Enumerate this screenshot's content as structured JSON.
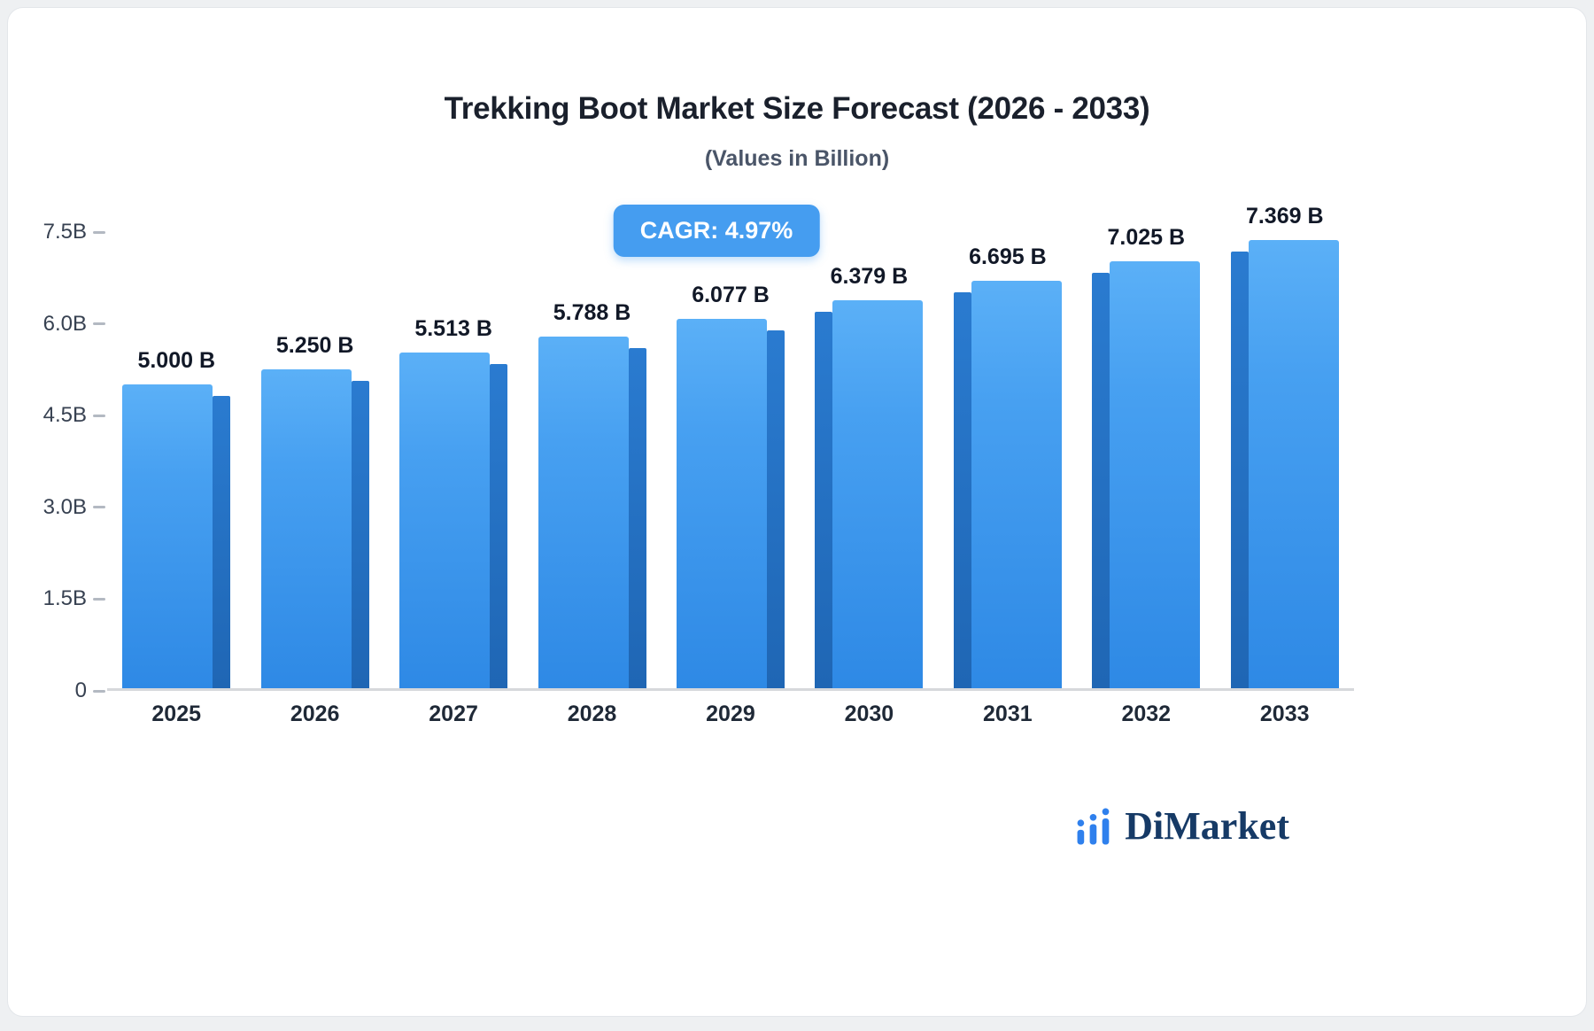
{
  "title": "Trekking Boot Market Size Forecast (2026 - 2033)",
  "subtitle": "(Values in Billion)",
  "badge": {
    "label": "CAGR: 4.97%"
  },
  "brand": {
    "name": "DiMarket"
  },
  "chart_data": {
    "type": "bar",
    "title": "Trekking Boot Market Size Forecast (2026 - 2033)",
    "subtitle": "(Values in Billion)",
    "annotation": "CAGR: 4.97%",
    "categories": [
      "2025",
      "2026",
      "2027",
      "2028",
      "2029",
      "2030",
      "2031",
      "2032",
      "2033"
    ],
    "values": [
      5.0,
      5.25,
      5.513,
      5.788,
      6.077,
      6.379,
      6.695,
      7.025,
      7.369
    ],
    "value_labels": [
      "5.000 B",
      "5.250 B",
      "5.513 B",
      "5.788 B",
      "6.077 B",
      "6.379 B",
      "6.695 B",
      "7.025 B",
      "7.369 B"
    ],
    "xlabel": "",
    "ylabel": "",
    "ylim": [
      0,
      7.5
    ],
    "yticks": [
      {
        "label": "7.5B",
        "value": 7.5
      },
      {
        "label": "6.0B",
        "value": 6.0
      },
      {
        "label": "4.5B",
        "value": 4.5
      },
      {
        "label": "3.0B",
        "value": 3.0
      },
      {
        "label": "1.5B",
        "value": 1.5
      },
      {
        "label": "0",
        "value": 0
      }
    ],
    "grid": false,
    "legend": false,
    "colors": {
      "bar_top": "#5bb0f7",
      "bar_bottom": "#2e89e5",
      "bar_side": "#1f66b4",
      "badge_bg": "#459df0",
      "axis_text": "#374151",
      "value_text": "#111827",
      "baseline": "#d6d8db"
    }
  }
}
